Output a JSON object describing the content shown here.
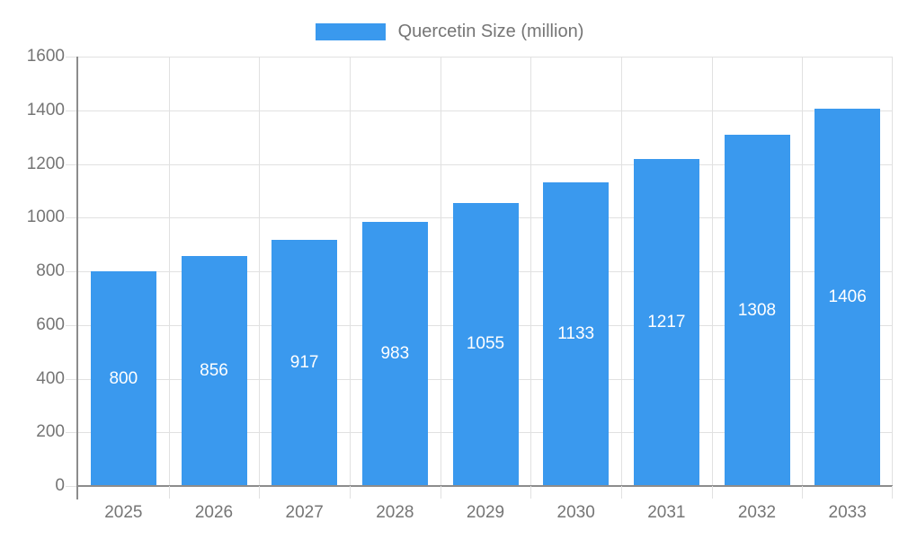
{
  "legend": {
    "label": "Quercetin Size (million)"
  },
  "chart_data": {
    "type": "bar",
    "title": "",
    "categories": [
      "2025",
      "2026",
      "2027",
      "2028",
      "2029",
      "2030",
      "2031",
      "2032",
      "2033"
    ],
    "series": [
      {
        "name": "Quercetin Size (million)",
        "values": [
          800,
          856,
          917,
          983,
          1055,
          1133,
          1217,
          1308,
          1406
        ]
      }
    ],
    "xlabel": "",
    "ylabel": "",
    "ylim": [
      0,
      1600
    ],
    "yticks": [
      0,
      200,
      400,
      600,
      800,
      1000,
      1200,
      1400,
      1600
    ],
    "grid": true,
    "legend_position": "top-center",
    "value_labels": "inside-center",
    "colors": {
      "bar": "#3A99EE",
      "value_label": "#FFFFFF",
      "axis_line": "#8C8C8C",
      "grid_line": "#E1E1E1",
      "tick_text": "#757575",
      "legend_text": "#757575",
      "background": "#FFFFFF"
    }
  }
}
